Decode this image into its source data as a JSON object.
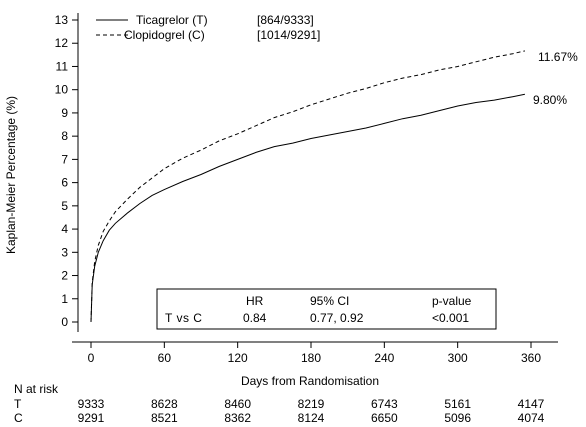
{
  "chart_data": {
    "type": "line",
    "ylabel": "Kaplan-Meier Percentage (%)",
    "xlabel": "Days from Randomisation",
    "xlim": [
      0,
      360
    ],
    "ylim": [
      0,
      13
    ],
    "x_ticks": [
      0,
      60,
      120,
      180,
      240,
      300,
      360
    ],
    "y_ticks": [
      0,
      1,
      2,
      3,
      4,
      5,
      6,
      7,
      8,
      9,
      10,
      11,
      12,
      13
    ],
    "grid": false,
    "legend_position": "top-left",
    "series": [
      {
        "name": "Ticagrelor (T)",
        "events_label": "[864/9333]",
        "line_style": "solid",
        "end_label": "9.80%",
        "points": [
          [
            0,
            0
          ],
          [
            1,
            1.6
          ],
          [
            3,
            2.4
          ],
          [
            6,
            3.0
          ],
          [
            10,
            3.5
          ],
          [
            15,
            3.95
          ],
          [
            20,
            4.25
          ],
          [
            30,
            4.7
          ],
          [
            40,
            5.1
          ],
          [
            50,
            5.45
          ],
          [
            60,
            5.7
          ],
          [
            75,
            6.05
          ],
          [
            90,
            6.35
          ],
          [
            105,
            6.7
          ],
          [
            120,
            7.0
          ],
          [
            135,
            7.3
          ],
          [
            150,
            7.55
          ],
          [
            165,
            7.7
          ],
          [
            180,
            7.9
          ],
          [
            195,
            8.05
          ],
          [
            210,
            8.2
          ],
          [
            225,
            8.35
          ],
          [
            240,
            8.55
          ],
          [
            255,
            8.75
          ],
          [
            270,
            8.9
          ],
          [
            285,
            9.1
          ],
          [
            300,
            9.3
          ],
          [
            315,
            9.45
          ],
          [
            330,
            9.55
          ],
          [
            345,
            9.7
          ],
          [
            355,
            9.8
          ]
        ]
      },
      {
        "name": "Clopidogrel (C)",
        "events_label": "[1014/9291]",
        "line_style": "dashed",
        "end_label": "11.67%",
        "points": [
          [
            0,
            0
          ],
          [
            1,
            1.7
          ],
          [
            3,
            2.6
          ],
          [
            6,
            3.3
          ],
          [
            10,
            3.9
          ],
          [
            15,
            4.35
          ],
          [
            20,
            4.75
          ],
          [
            30,
            5.3
          ],
          [
            40,
            5.8
          ],
          [
            50,
            6.2
          ],
          [
            60,
            6.6
          ],
          [
            75,
            7.05
          ],
          [
            90,
            7.4
          ],
          [
            105,
            7.8
          ],
          [
            120,
            8.1
          ],
          [
            135,
            8.45
          ],
          [
            150,
            8.8
          ],
          [
            165,
            9.05
          ],
          [
            180,
            9.35
          ],
          [
            195,
            9.6
          ],
          [
            210,
            9.85
          ],
          [
            225,
            10.05
          ],
          [
            240,
            10.3
          ],
          [
            255,
            10.5
          ],
          [
            270,
            10.65
          ],
          [
            285,
            10.85
          ],
          [
            300,
            11.0
          ],
          [
            315,
            11.2
          ],
          [
            330,
            11.4
          ],
          [
            345,
            11.55
          ],
          [
            355,
            11.67
          ]
        ]
      }
    ],
    "stats_box": {
      "headers": [
        "",
        "HR",
        "95% CI",
        "p-value"
      ],
      "row": [
        "T vs C",
        "0.84",
        "0.77, 0.92",
        "<0.001"
      ]
    },
    "at_risk": {
      "title": "N at risk",
      "days": [
        0,
        60,
        120,
        180,
        240,
        300,
        360
      ],
      "rows": [
        {
          "label": "T",
          "values": [
            "9333",
            "8628",
            "8460",
            "8219",
            "6743",
            "5161",
            "4147"
          ]
        },
        {
          "label": "C",
          "values": [
            "9291",
            "8521",
            "8362",
            "8124",
            "6650",
            "5096",
            "4074"
          ]
        }
      ]
    }
  }
}
